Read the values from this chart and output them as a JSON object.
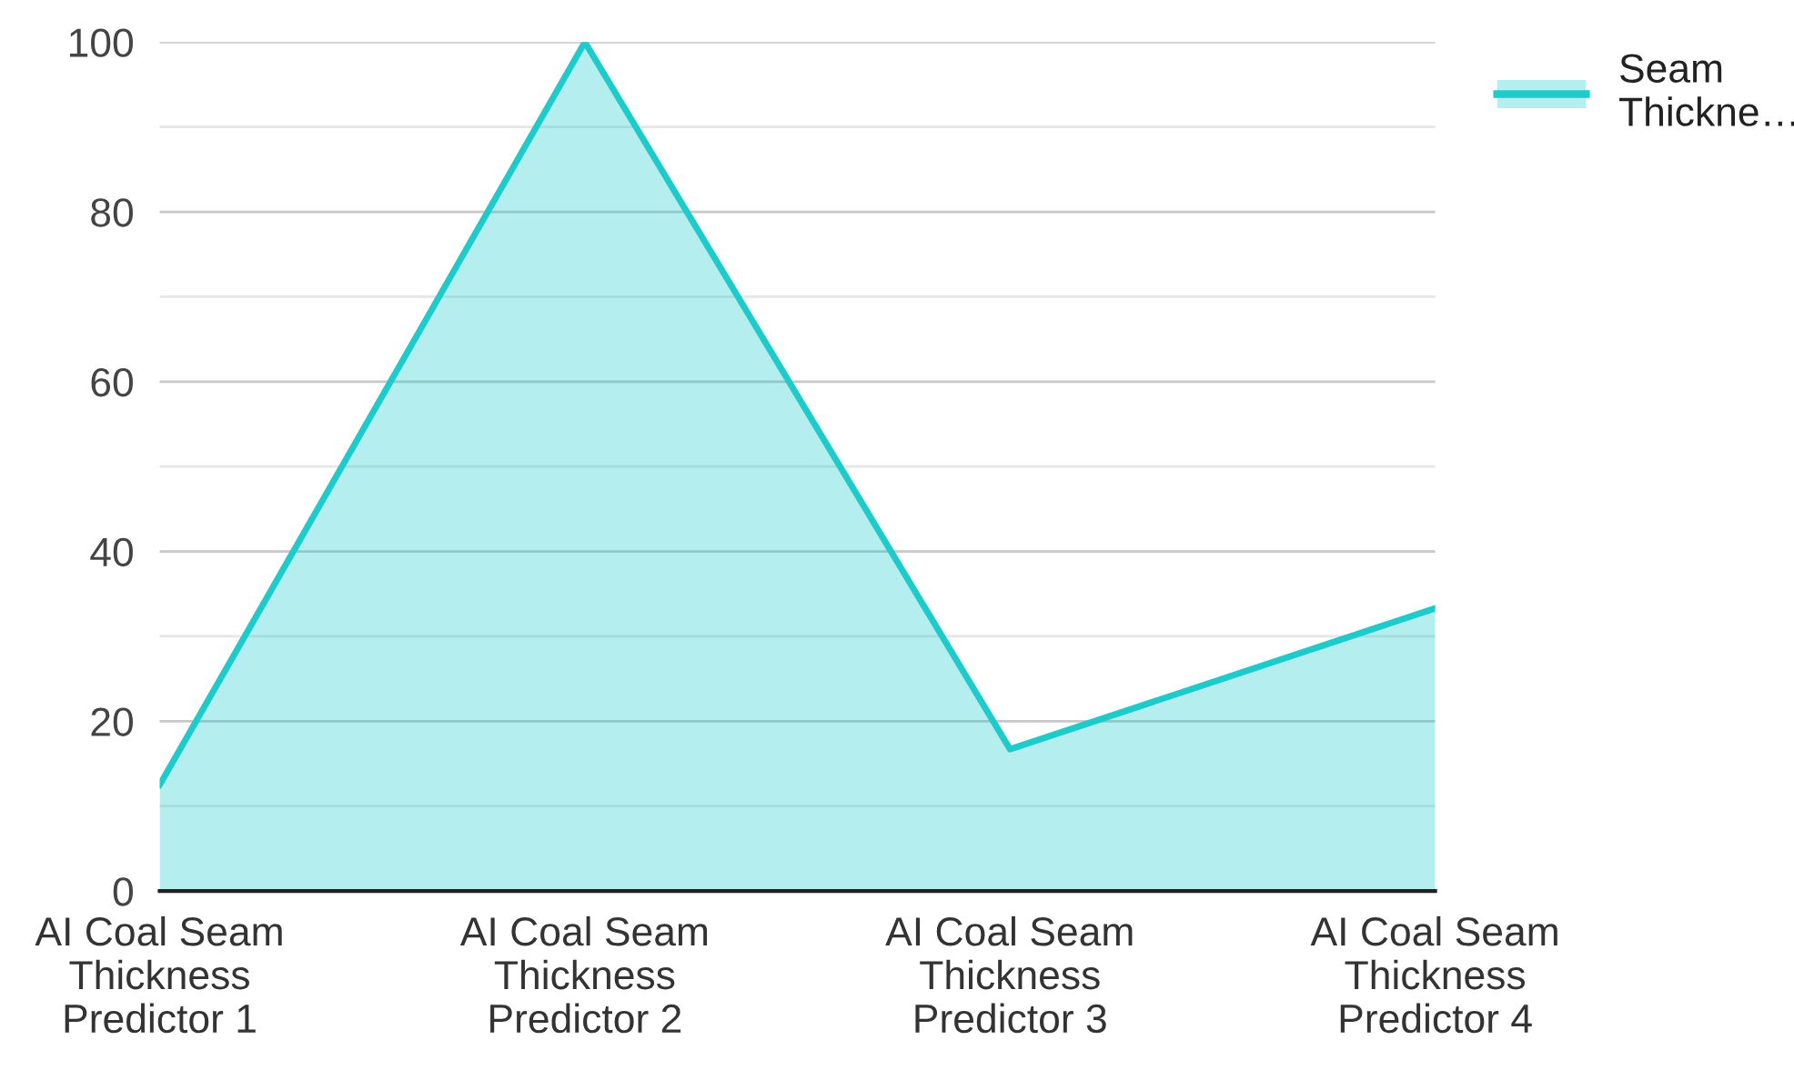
{
  "chart_data": {
    "type": "area",
    "categories": [
      "AI Coal Seam\nThickness\nPredictor 1",
      "AI Coal Seam\nThickness\nPredictor 2",
      "AI Coal Seam\nThickness\nPredictor 3",
      "AI Coal Seam\nThickness\nPredictor 4"
    ],
    "series": [
      {
        "name": "Seam Thickne…",
        "color": "#1ecbcb",
        "values": [
          12.5,
          100,
          16.7,
          33.3
        ]
      }
    ],
    "ylim": [
      0,
      100
    ],
    "yticks": [
      0,
      {
        "value": 10,
        "label": null
      },
      20,
      {
        "value": 30,
        "label": null
      },
      40,
      {
        "value": 50,
        "label": null
      },
      60,
      {
        "value": 70,
        "label": null
      },
      80,
      {
        "value": 90,
        "label": null
      },
      100
    ],
    "grid": "y",
    "legend": "top right"
  }
}
